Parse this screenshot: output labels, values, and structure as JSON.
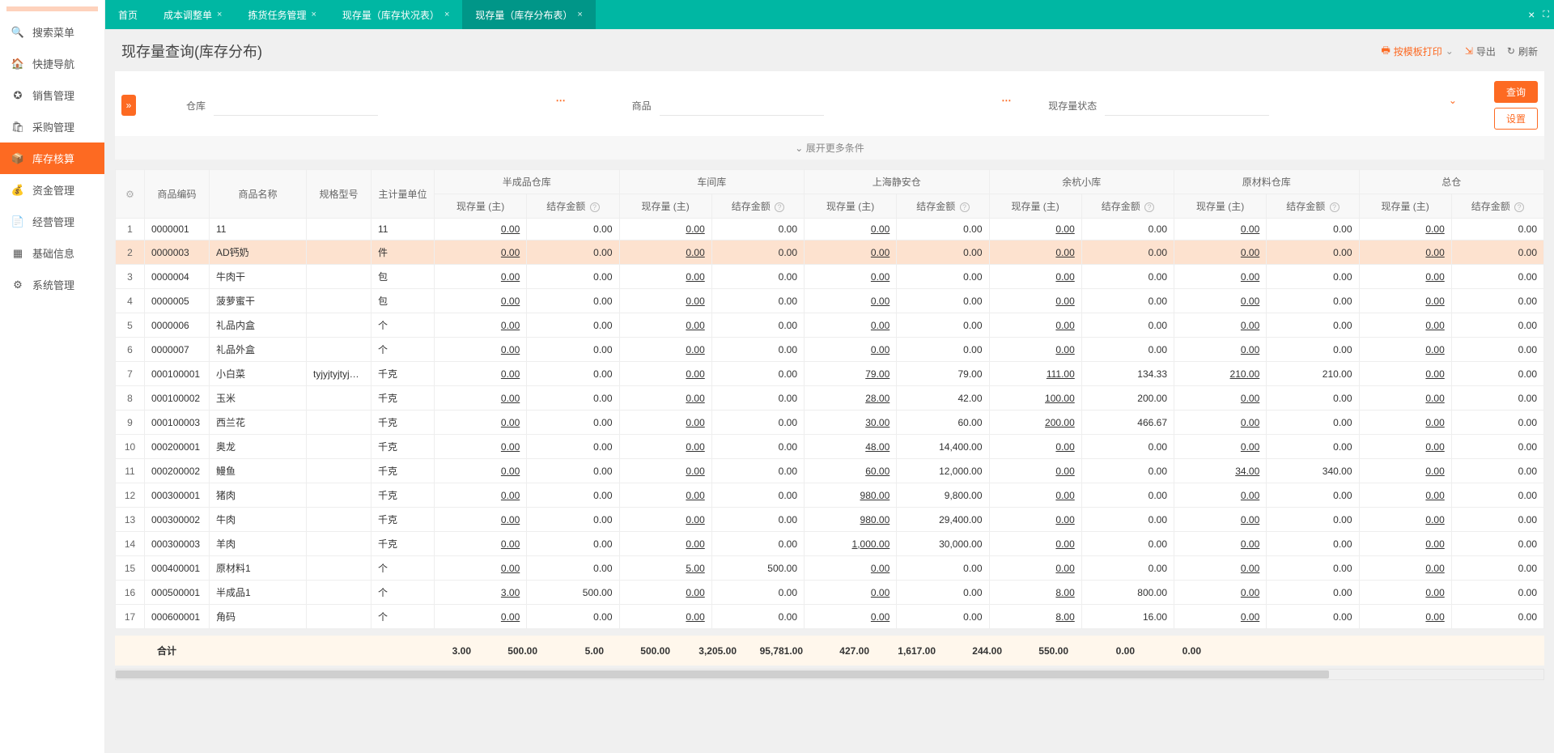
{
  "sidebar": [
    {
      "icon": "search",
      "label": "搜索菜单"
    },
    {
      "icon": "compass",
      "label": "快捷导航"
    },
    {
      "icon": "badge",
      "label": "销售管理"
    },
    {
      "icon": "bag",
      "label": "采购管理"
    },
    {
      "icon": "box",
      "label": "库存核算",
      "active": true
    },
    {
      "icon": "coin",
      "label": "资金管理"
    },
    {
      "icon": "doc",
      "label": "经营管理"
    },
    {
      "icon": "grid",
      "label": "基础信息"
    },
    {
      "icon": "gear",
      "label": "系统管理"
    }
  ],
  "tabs": [
    {
      "label": "首页",
      "closable": false
    },
    {
      "label": "成本调整单",
      "closable": true
    },
    {
      "label": "拣货任务管理",
      "closable": true
    },
    {
      "label": "现存量（库存状况表）",
      "closable": true
    },
    {
      "label": "现存量（库存分布表）",
      "closable": true,
      "active": true
    }
  ],
  "page_title": "现存量查询(库存分布)",
  "toolbar": {
    "print": "按模板打印",
    "export": "导出",
    "refresh": "刷新"
  },
  "filters": {
    "warehouse": "仓库",
    "product": "商品",
    "status": "现存量状态",
    "search": "查询",
    "settings": "设置",
    "expand": "展开更多条件"
  },
  "warehouses": [
    "半成品仓库",
    "车间库",
    "上海静安仓",
    "余杭小库",
    "原材料仓库",
    "总仓"
  ],
  "value_cols": [
    "现存量 (主)",
    "结存金额"
  ],
  "fixed_cols": {
    "code": "商品编码",
    "name": "商品名称",
    "spec": "规格型号",
    "unit": "主计量单位"
  },
  "rows": [
    {
      "code": "0000001",
      "name": "11",
      "spec": "",
      "unit": "11",
      "v": [
        [
          "0.00",
          "0.00"
        ],
        [
          "0.00",
          "0.00"
        ],
        [
          "0.00",
          "0.00"
        ],
        [
          "0.00",
          "0.00"
        ],
        [
          "0.00",
          "0.00"
        ],
        [
          "0.00",
          "0.00"
        ]
      ]
    },
    {
      "code": "0000003",
      "name": "AD钙奶",
      "spec": "",
      "unit": "件",
      "hl": true,
      "v": [
        [
          "0.00",
          "0.00"
        ],
        [
          "0.00",
          "0.00"
        ],
        [
          "0.00",
          "0.00"
        ],
        [
          "0.00",
          "0.00"
        ],
        [
          "0.00",
          "0.00"
        ],
        [
          "0.00",
          "0.00"
        ]
      ]
    },
    {
      "code": "0000004",
      "name": "牛肉干",
      "spec": "",
      "unit": "包",
      "v": [
        [
          "0.00",
          "0.00"
        ],
        [
          "0.00",
          "0.00"
        ],
        [
          "0.00",
          "0.00"
        ],
        [
          "0.00",
          "0.00"
        ],
        [
          "0.00",
          "0.00"
        ],
        [
          "0.00",
          "0.00"
        ]
      ]
    },
    {
      "code": "0000005",
      "name": "菠萝蜜干",
      "spec": "",
      "unit": "包",
      "v": [
        [
          "0.00",
          "0.00"
        ],
        [
          "0.00",
          "0.00"
        ],
        [
          "0.00",
          "0.00"
        ],
        [
          "0.00",
          "0.00"
        ],
        [
          "0.00",
          "0.00"
        ],
        [
          "0.00",
          "0.00"
        ]
      ]
    },
    {
      "code": "0000006",
      "name": "礼品内盒",
      "spec": "",
      "unit": "个",
      "v": [
        [
          "0.00",
          "0.00"
        ],
        [
          "0.00",
          "0.00"
        ],
        [
          "0.00",
          "0.00"
        ],
        [
          "0.00",
          "0.00"
        ],
        [
          "0.00",
          "0.00"
        ],
        [
          "0.00",
          "0.00"
        ]
      ]
    },
    {
      "code": "0000007",
      "name": "礼品外盒",
      "spec": "",
      "unit": "个",
      "v": [
        [
          "0.00",
          "0.00"
        ],
        [
          "0.00",
          "0.00"
        ],
        [
          "0.00",
          "0.00"
        ],
        [
          "0.00",
          "0.00"
        ],
        [
          "0.00",
          "0.00"
        ],
        [
          "0.00",
          "0.00"
        ]
      ]
    },
    {
      "code": "000100001",
      "name": "小白菜",
      "spec": "tyjyjtyjtyjdf...",
      "unit": "千克",
      "v": [
        [
          "0.00",
          "0.00"
        ],
        [
          "0.00",
          "0.00"
        ],
        [
          "79.00",
          "79.00"
        ],
        [
          "111.00",
          "134.33"
        ],
        [
          "210.00",
          "210.00"
        ],
        [
          "0.00",
          "0.00"
        ]
      ]
    },
    {
      "code": "000100002",
      "name": "玉米",
      "spec": "",
      "unit": "千克",
      "v": [
        [
          "0.00",
          "0.00"
        ],
        [
          "0.00",
          "0.00"
        ],
        [
          "28.00",
          "42.00"
        ],
        [
          "100.00",
          "200.00"
        ],
        [
          "0.00",
          "0.00"
        ],
        [
          "0.00",
          "0.00"
        ]
      ]
    },
    {
      "code": "000100003",
      "name": "西兰花",
      "spec": "",
      "unit": "千克",
      "v": [
        [
          "0.00",
          "0.00"
        ],
        [
          "0.00",
          "0.00"
        ],
        [
          "30.00",
          "60.00"
        ],
        [
          "200.00",
          "466.67"
        ],
        [
          "0.00",
          "0.00"
        ],
        [
          "0.00",
          "0.00"
        ]
      ]
    },
    {
      "code": "000200001",
      "name": "奥龙",
      "spec": "",
      "unit": "千克",
      "v": [
        [
          "0.00",
          "0.00"
        ],
        [
          "0.00",
          "0.00"
        ],
        [
          "48.00",
          "14,400.00"
        ],
        [
          "0.00",
          "0.00"
        ],
        [
          "0.00",
          "0.00"
        ],
        [
          "0.00",
          "0.00"
        ]
      ]
    },
    {
      "code": "000200002",
      "name": "鳗鱼",
      "spec": "",
      "unit": "千克",
      "v": [
        [
          "0.00",
          "0.00"
        ],
        [
          "0.00",
          "0.00"
        ],
        [
          "60.00",
          "12,000.00"
        ],
        [
          "0.00",
          "0.00"
        ],
        [
          "34.00",
          "340.00"
        ],
        [
          "0.00",
          "0.00"
        ]
      ]
    },
    {
      "code": "000300001",
      "name": "猪肉",
      "spec": "",
      "unit": "千克",
      "v": [
        [
          "0.00",
          "0.00"
        ],
        [
          "0.00",
          "0.00"
        ],
        [
          "980.00",
          "9,800.00"
        ],
        [
          "0.00",
          "0.00"
        ],
        [
          "0.00",
          "0.00"
        ],
        [
          "0.00",
          "0.00"
        ]
      ]
    },
    {
      "code": "000300002",
      "name": "牛肉",
      "spec": "",
      "unit": "千克",
      "v": [
        [
          "0.00",
          "0.00"
        ],
        [
          "0.00",
          "0.00"
        ],
        [
          "980.00",
          "29,400.00"
        ],
        [
          "0.00",
          "0.00"
        ],
        [
          "0.00",
          "0.00"
        ],
        [
          "0.00",
          "0.00"
        ]
      ]
    },
    {
      "code": "000300003",
      "name": "羊肉",
      "spec": "",
      "unit": "千克",
      "v": [
        [
          "0.00",
          "0.00"
        ],
        [
          "0.00",
          "0.00"
        ],
        [
          "1,000.00",
          "30,000.00"
        ],
        [
          "0.00",
          "0.00"
        ],
        [
          "0.00",
          "0.00"
        ],
        [
          "0.00",
          "0.00"
        ]
      ]
    },
    {
      "code": "000400001",
      "name": "原材料1",
      "spec": "",
      "unit": "个",
      "v": [
        [
          "0.00",
          "0.00"
        ],
        [
          "5.00",
          "500.00"
        ],
        [
          "0.00",
          "0.00"
        ],
        [
          "0.00",
          "0.00"
        ],
        [
          "0.00",
          "0.00"
        ],
        [
          "0.00",
          "0.00"
        ]
      ]
    },
    {
      "code": "000500001",
      "name": "半成品1",
      "spec": "",
      "unit": "个",
      "v": [
        [
          "3.00",
          "500.00"
        ],
        [
          "0.00",
          "0.00"
        ],
        [
          "0.00",
          "0.00"
        ],
        [
          "8.00",
          "800.00"
        ],
        [
          "0.00",
          "0.00"
        ],
        [
          "0.00",
          "0.00"
        ]
      ]
    },
    {
      "code": "000600001",
      "name": "角码",
      "spec": "",
      "unit": "个",
      "v": [
        [
          "0.00",
          "0.00"
        ],
        [
          "0.00",
          "0.00"
        ],
        [
          "0.00",
          "0.00"
        ],
        [
          "8.00",
          "16.00"
        ],
        [
          "0.00",
          "0.00"
        ],
        [
          "0.00",
          "0.00"
        ]
      ]
    }
  ],
  "totals": {
    "label": "合计",
    "v": [
      "3.00",
      "500.00",
      "5.00",
      "500.00",
      "3,205.00",
      "95,781.00",
      "427.00",
      "1,617.00",
      "244.00",
      "550.00",
      "0.00",
      "0.00"
    ]
  }
}
